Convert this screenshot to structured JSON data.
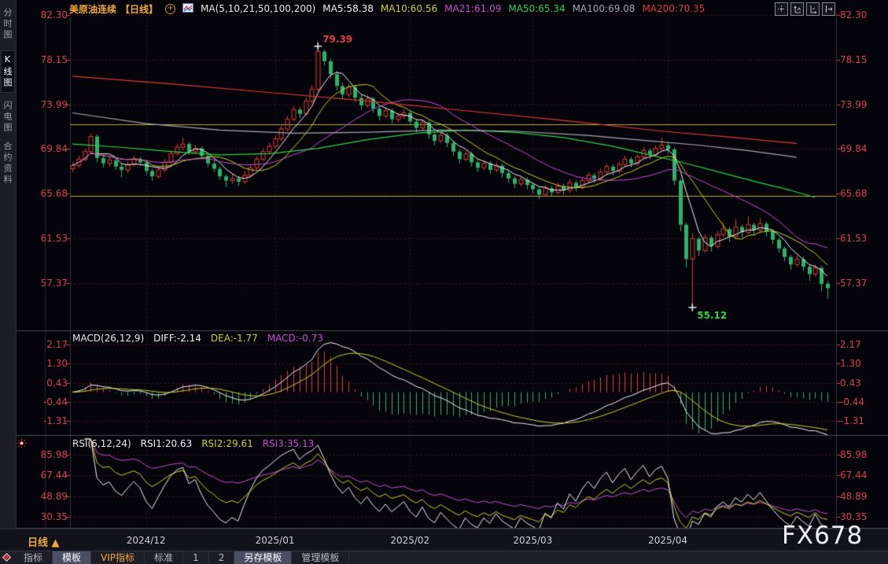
{
  "sidebar": {
    "items": [
      {
        "label": "分时图",
        "selected": false
      },
      {
        "label": "K线图",
        "selected": true
      },
      {
        "label": "闪电图",
        "selected": false
      },
      {
        "label": "合约资料",
        "selected": false
      }
    ]
  },
  "header": {
    "symbol": "美原油连续",
    "period_tag": "【日线】",
    "plus_badge": "+",
    "ma_label": "MA(5,10,21,50,100,200)",
    "ma_values": [
      {
        "text": "MA5:58.38",
        "color": "#f2f2f2"
      },
      {
        "text": "MA10:60.56",
        "color": "#ccd12f"
      },
      {
        "text": "MA21:61.09",
        "color": "#c94fd4"
      },
      {
        "text": "MA50:65.34",
        "color": "#2fd44a"
      },
      {
        "text": "MA100:69.08",
        "color": "#a7a7ad"
      },
      {
        "text": "MA200:70.35",
        "color": "#e23b35"
      }
    ],
    "icons": [
      "move-icon",
      "zoom-y-axis-icon",
      "zoom-x-axis-icon",
      "pan-right-icon"
    ]
  },
  "macd_panel": {
    "title": "MACD(26,12,9)",
    "diff_label": "DIFF:-2.14",
    "dea_label": "DEA:-1.77",
    "macd_label": "MACD:-0.73",
    "colors": {
      "title": "#e8e8e8",
      "diff": "#f2f2f2",
      "dea": "#ccd12f",
      "macd": "#c94fd4"
    }
  },
  "rsi_panel": {
    "title": "RSI(6,12,24)",
    "rsi1_label": "RSI1:20.63",
    "rsi2_label": "RSI2:29.61",
    "rsi3_label": "RSI3:35.13",
    "colors": {
      "title": "#e8e8e8",
      "rsi1": "#f2f2f2",
      "rsi2": "#ccd12f",
      "rsi3": "#c94fd4"
    }
  },
  "timeline": {
    "period": "日线 ▲"
  },
  "toolbar": {
    "items": [
      {
        "label": "指标",
        "selected": false,
        "vip": false
      },
      {
        "label": "模板",
        "selected": true,
        "vip": false
      },
      {
        "label": "VIP指标",
        "selected": false,
        "vip": true
      },
      {
        "label": "标准",
        "selected": false,
        "vip": false
      },
      {
        "label": "1",
        "selected": false,
        "vip": false
      },
      {
        "label": "2",
        "selected": false,
        "vip": false
      },
      {
        "label": "另存模板",
        "selected": true,
        "vip": false
      },
      {
        "label": "管理模板",
        "selected": false,
        "vip": false
      }
    ]
  },
  "watermark": "FX678",
  "chart_data": {
    "type": "candlestick",
    "symbol": "美原油连续",
    "timeframe": "日线",
    "price_axis_ticks": [
      82.3,
      78.15,
      73.99,
      69.84,
      65.68,
      61.53,
      57.37
    ],
    "axis_color": "#d8414f",
    "x_month_ticks": [
      {
        "index": 12,
        "label": "2024/12"
      },
      {
        "index": 33,
        "label": "2025/01"
      },
      {
        "index": 55,
        "label": "2025/02"
      },
      {
        "index": 75,
        "label": "2025/03"
      },
      {
        "index": 97,
        "label": "2025/04"
      }
    ],
    "candle_colors": {
      "up": "#df3a36",
      "down": "#2cb26b"
    },
    "candles_ohlc": [
      [
        68.0,
        68.6,
        67.7,
        68.3
      ],
      [
        68.3,
        69.2,
        68.1,
        68.9
      ],
      [
        68.9,
        69.9,
        68.7,
        69.6
      ],
      [
        69.6,
        71.3,
        69.4,
        71.0
      ],
      [
        71.0,
        71.2,
        68.6,
        69.0
      ],
      [
        69.0,
        69.3,
        68.1,
        68.5
      ],
      [
        68.5,
        69.1,
        68.2,
        68.8
      ],
      [
        68.8,
        69.0,
        67.9,
        68.2
      ],
      [
        68.2,
        68.5,
        67.2,
        67.9
      ],
      [
        67.9,
        68.7,
        67.6,
        68.4
      ],
      [
        68.4,
        69.2,
        68.2,
        68.9
      ],
      [
        68.9,
        69.1,
        68.3,
        68.6
      ],
      [
        68.6,
        68.8,
        67.5,
        67.8
      ],
      [
        67.8,
        68.0,
        66.9,
        67.3
      ],
      [
        67.3,
        68.2,
        67.1,
        67.9
      ],
      [
        67.9,
        68.9,
        67.7,
        68.6
      ],
      [
        68.6,
        69.7,
        68.4,
        69.4
      ],
      [
        69.4,
        70.3,
        69.2,
        70.0
      ],
      [
        70.0,
        70.9,
        69.7,
        70.3
      ],
      [
        70.3,
        70.5,
        69.3,
        69.6
      ],
      [
        69.6,
        70.2,
        69.4,
        69.9
      ],
      [
        69.9,
        70.1,
        68.9,
        69.2
      ],
      [
        69.2,
        69.4,
        68.2,
        68.5
      ],
      [
        68.5,
        68.8,
        67.7,
        68.0
      ],
      [
        68.0,
        68.2,
        67.0,
        67.3
      ],
      [
        67.3,
        67.5,
        66.3,
        66.9
      ],
      [
        66.9,
        67.5,
        66.6,
        67.1
      ],
      [
        67.1,
        67.3,
        66.4,
        66.8
      ],
      [
        66.8,
        67.8,
        66.6,
        67.4
      ],
      [
        67.4,
        68.4,
        67.2,
        68.1
      ],
      [
        68.1,
        69.2,
        67.9,
        68.9
      ],
      [
        68.9,
        69.9,
        68.7,
        69.6
      ],
      [
        69.6,
        70.4,
        69.4,
        70.1
      ],
      [
        70.1,
        71.1,
        69.9,
        70.8
      ],
      [
        70.8,
        72.0,
        70.6,
        71.7
      ],
      [
        71.7,
        72.9,
        71.5,
        72.6
      ],
      [
        72.6,
        73.8,
        72.4,
        73.5
      ],
      [
        73.5,
        73.7,
        72.7,
        73.1
      ],
      [
        73.1,
        74.6,
        72.9,
        74.3
      ],
      [
        74.3,
        75.8,
        74.1,
        75.4
      ],
      [
        75.4,
        79.39,
        75.2,
        78.9
      ],
      [
        78.9,
        79.1,
        77.6,
        78.0
      ],
      [
        78.0,
        78.2,
        76.4,
        76.8
      ],
      [
        76.8,
        77.1,
        75.3,
        75.7
      ],
      [
        75.7,
        76.0,
        74.5,
        74.9
      ],
      [
        74.9,
        75.9,
        74.7,
        75.6
      ],
      [
        75.6,
        75.8,
        74.2,
        74.6
      ],
      [
        74.6,
        74.9,
        73.5,
        73.9
      ],
      [
        73.9,
        74.8,
        73.7,
        74.5
      ],
      [
        74.5,
        74.7,
        73.2,
        73.6
      ],
      [
        73.6,
        73.8,
        72.5,
        72.9
      ],
      [
        72.9,
        73.7,
        72.7,
        73.4
      ],
      [
        73.4,
        73.6,
        72.2,
        72.6
      ],
      [
        72.6,
        73.2,
        72.3,
        72.9
      ],
      [
        72.9,
        73.5,
        72.6,
        73.2
      ],
      [
        73.2,
        73.4,
        72.0,
        72.4
      ],
      [
        72.4,
        72.6,
        71.4,
        71.8
      ],
      [
        71.8,
        72.6,
        71.6,
        72.3
      ],
      [
        72.3,
        72.5,
        70.8,
        71.2
      ],
      [
        71.2,
        71.4,
        70.2,
        70.6
      ],
      [
        70.6,
        71.4,
        70.4,
        71.1
      ],
      [
        71.1,
        71.3,
        70.0,
        70.4
      ],
      [
        70.4,
        70.6,
        69.2,
        69.6
      ],
      [
        69.6,
        69.8,
        68.5,
        68.9
      ],
      [
        68.9,
        69.7,
        68.7,
        69.4
      ],
      [
        69.4,
        69.6,
        68.2,
        68.6
      ],
      [
        68.6,
        68.8,
        67.7,
        68.1
      ],
      [
        68.1,
        68.8,
        67.9,
        68.5
      ],
      [
        68.5,
        68.7,
        67.5,
        67.9
      ],
      [
        67.9,
        68.6,
        67.7,
        68.3
      ],
      [
        68.3,
        68.5,
        67.2,
        67.6
      ],
      [
        67.6,
        67.8,
        66.7,
        67.1
      ],
      [
        67.1,
        67.3,
        66.2,
        66.6
      ],
      [
        66.6,
        67.3,
        66.4,
        67.0
      ],
      [
        67.0,
        67.2,
        66.1,
        66.5
      ],
      [
        66.5,
        66.7,
        65.7,
        66.1
      ],
      [
        66.1,
        66.3,
        65.2,
        65.6
      ],
      [
        65.6,
        66.5,
        65.4,
        66.2
      ],
      [
        66.2,
        66.4,
        65.4,
        65.8
      ],
      [
        65.8,
        66.7,
        65.6,
        66.4
      ],
      [
        66.4,
        66.6,
        65.6,
        66.0
      ],
      [
        66.0,
        67.0,
        65.8,
        66.7
      ],
      [
        66.7,
        66.9,
        65.9,
        66.3
      ],
      [
        66.3,
        67.2,
        66.1,
        66.9
      ],
      [
        66.9,
        67.7,
        66.7,
        67.4
      ],
      [
        67.4,
        67.6,
        66.7,
        67.1
      ],
      [
        67.1,
        68.0,
        66.9,
        67.7
      ],
      [
        67.7,
        68.5,
        67.5,
        68.2
      ],
      [
        68.2,
        68.4,
        67.4,
        67.8
      ],
      [
        67.8,
        68.7,
        67.6,
        68.4
      ],
      [
        68.4,
        69.2,
        68.2,
        68.9
      ],
      [
        68.9,
        69.1,
        68.1,
        68.5
      ],
      [
        68.5,
        69.4,
        68.3,
        69.1
      ],
      [
        69.1,
        70.0,
        68.9,
        69.7
      ],
      [
        69.7,
        69.9,
        68.9,
        69.3
      ],
      [
        69.3,
        70.2,
        69.1,
        69.9
      ],
      [
        69.9,
        70.9,
        69.7,
        70.2
      ],
      [
        70.2,
        70.4,
        69.4,
        69.8
      ],
      [
        69.8,
        70.0,
        66.5,
        66.9
      ],
      [
        66.9,
        67.1,
        62.2,
        62.8
      ],
      [
        62.8,
        63.0,
        58.8,
        59.6
      ],
      [
        59.6,
        62.0,
        55.12,
        61.5
      ],
      [
        61.5,
        61.7,
        59.9,
        60.4
      ],
      [
        60.4,
        61.9,
        60.2,
        61.6
      ],
      [
        61.6,
        61.8,
        60.3,
        60.8
      ],
      [
        60.8,
        62.2,
        60.6,
        61.9
      ],
      [
        61.9,
        63.0,
        61.7,
        62.4
      ],
      [
        62.4,
        62.6,
        61.2,
        61.7
      ],
      [
        61.7,
        63.3,
        61.5,
        62.6
      ],
      [
        62.6,
        62.8,
        61.6,
        62.1
      ],
      [
        62.1,
        63.6,
        61.9,
        62.8
      ],
      [
        62.8,
        63.0,
        61.8,
        62.3
      ],
      [
        62.3,
        63.4,
        62.1,
        62.9
      ],
      [
        62.9,
        63.1,
        61.7,
        62.2
      ],
      [
        62.2,
        62.4,
        61.0,
        61.4
      ],
      [
        61.4,
        61.6,
        60.2,
        60.6
      ],
      [
        60.6,
        60.8,
        59.4,
        59.8
      ],
      [
        59.8,
        60.0,
        58.6,
        59.1
      ],
      [
        59.1,
        59.9,
        58.9,
        59.6
      ],
      [
        59.6,
        59.8,
        58.5,
        58.9
      ],
      [
        58.9,
        59.1,
        57.6,
        58.2
      ],
      [
        58.2,
        59.1,
        58.0,
        58.8
      ],
      [
        58.8,
        59.0,
        56.6,
        57.3
      ],
      [
        57.3,
        57.6,
        55.9,
        56.9
      ]
    ],
    "overlays": {
      "ma_computed": [
        {
          "period": 5,
          "color": "#f2f2f2"
        },
        {
          "period": 10,
          "color": "#ccd12f"
        },
        {
          "period": 21,
          "color": "#c94fd4"
        }
      ],
      "ma_polylines": [
        {
          "name": "MA50",
          "color": "#2fd44a",
          "points": [
            [
              0,
              70.3
            ],
            [
              8,
              70.0
            ],
            [
              16,
              69.6
            ],
            [
              24,
              69.3
            ],
            [
              32,
              69.4
            ],
            [
              40,
              69.9
            ],
            [
              48,
              70.7
            ],
            [
              56,
              71.3
            ],
            [
              64,
              71.6
            ],
            [
              72,
              71.4
            ],
            [
              80,
              70.9
            ],
            [
              88,
              70.1
            ],
            [
              94,
              69.3
            ],
            [
              100,
              68.5
            ],
            [
              106,
              67.6
            ],
            [
              112,
              66.7
            ],
            [
              117,
              66.0
            ],
            [
              121,
              65.34
            ]
          ]
        },
        {
          "name": "MA100",
          "color": "#a7a7ad",
          "points": [
            [
              0,
              73.2
            ],
            [
              12,
              72.2
            ],
            [
              24,
              71.6
            ],
            [
              36,
              71.3
            ],
            [
              48,
              71.4
            ],
            [
              60,
              71.6
            ],
            [
              72,
              71.5
            ],
            [
              84,
              71.1
            ],
            [
              94,
              70.6
            ],
            [
              102,
              70.2
            ],
            [
              110,
              69.7
            ],
            [
              118,
              69.08
            ]
          ]
        },
        {
          "name": "MA200",
          "color": "#e23b35",
          "points": [
            [
              0,
              76.6
            ],
            [
              16,
              75.9
            ],
            [
              32,
              75.1
            ],
            [
              48,
              74.3
            ],
            [
              64,
              73.4
            ],
            [
              80,
              72.5
            ],
            [
              96,
              71.5
            ],
            [
              108,
              70.9
            ],
            [
              118,
              70.35
            ]
          ]
        }
      ],
      "hlines": [
        {
          "price": 72.15,
          "color": "#b3a93f"
        },
        {
          "price": 65.5,
          "color": "#b3a93f"
        }
      ]
    },
    "annotations": [
      {
        "index": 40,
        "price": 79.39,
        "text": "79.39",
        "color": "#e0413e",
        "pos": "above"
      },
      {
        "index": 101,
        "price": 55.12,
        "text": "55.12",
        "color": "#2fd44a",
        "pos": "below"
      }
    ],
    "macd_panel": {
      "type": "macd",
      "params": [
        26,
        12,
        9
      ],
      "axis_ticks": [
        2.17,
        1.3,
        0.43,
        -0.44,
        -1.31
      ],
      "latest": {
        "diff": -2.14,
        "dea": -1.77,
        "macd": -0.73
      },
      "hist_colors": {
        "pos": "#e0413e",
        "neg": "#2fb56d"
      }
    },
    "rsi_panel": {
      "type": "rsi",
      "params": [
        6,
        12,
        24
      ],
      "axis_ticks": [
        85.98,
        67.44,
        48.89,
        30.35
      ],
      "latest": {
        "rsi1": 20.63,
        "rsi2": 29.61,
        "rsi3": 35.13
      }
    }
  }
}
